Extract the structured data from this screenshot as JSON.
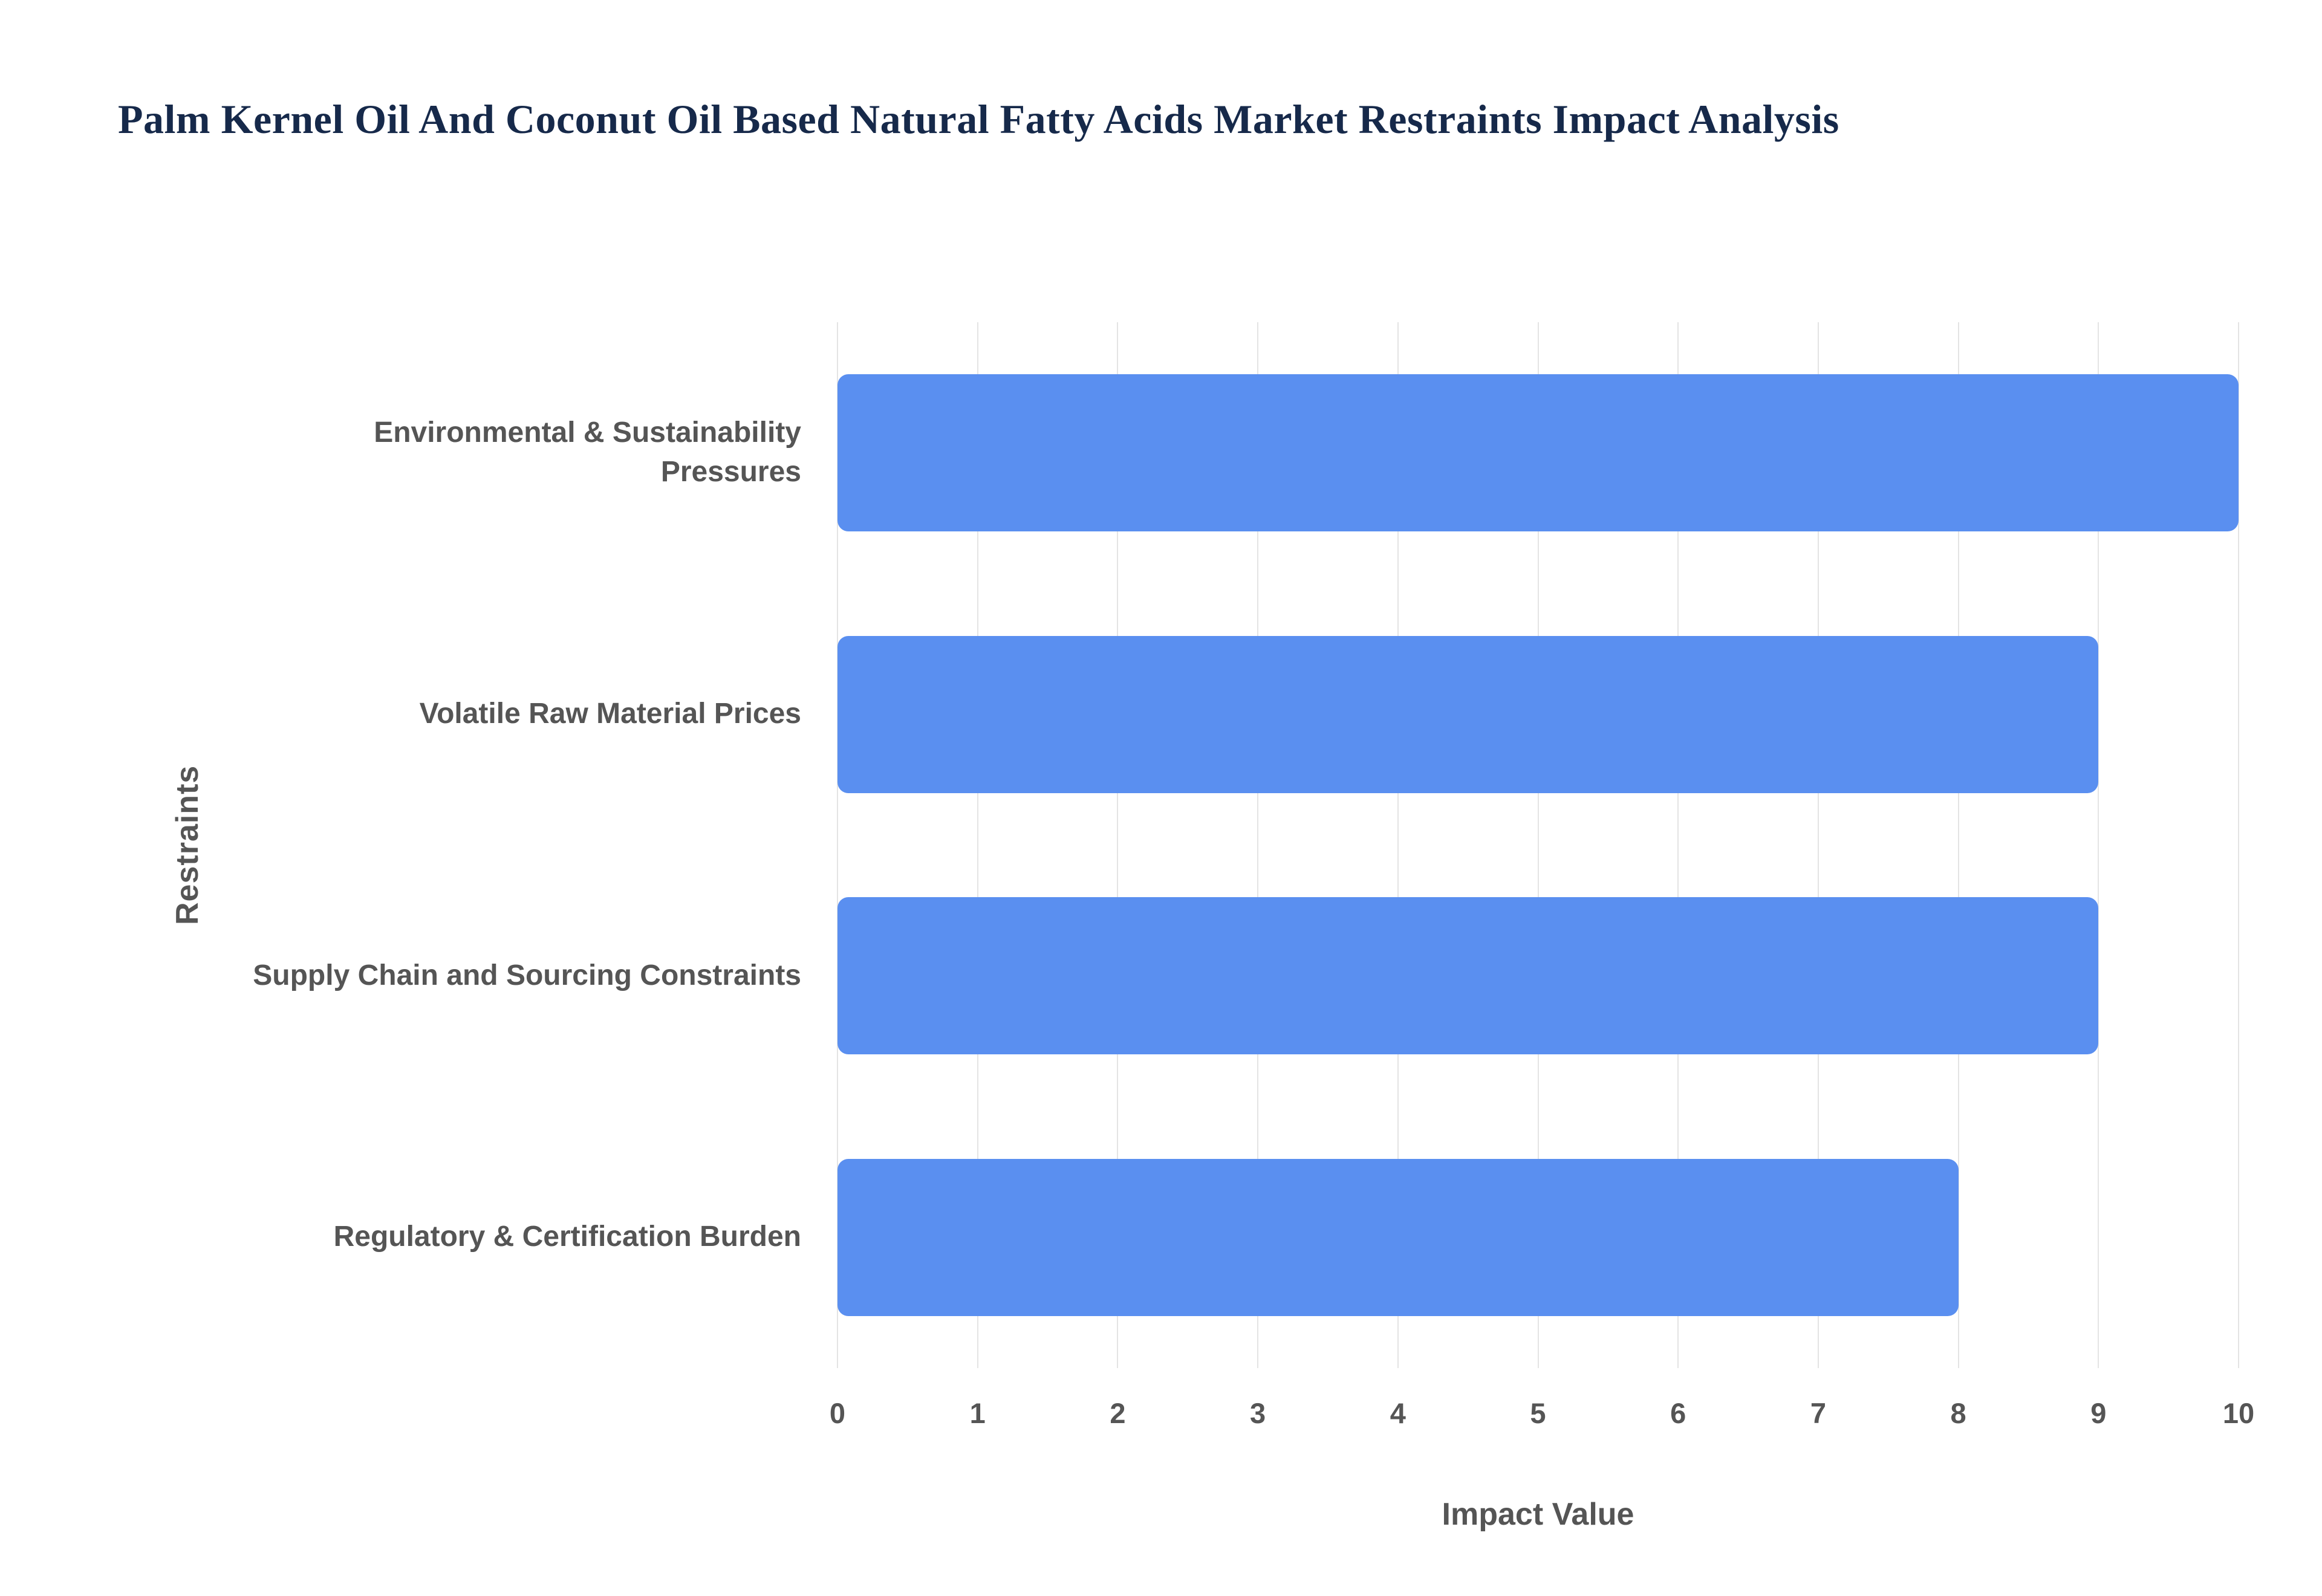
{
  "title": "Palm Kernel Oil And Coconut Oil Based Natural Fatty Acids Market Restraints Impact Analysis",
  "chart_data": {
    "type": "bar",
    "orientation": "horizontal",
    "title": "Palm Kernel Oil And Coconut Oil Based Natural Fatty Acids Market Restraints Impact Analysis",
    "categories": [
      "Environmental & Sustainability Pressures",
      "Volatile Raw Material Prices",
      "Supply Chain and Sourcing Constraints",
      "Regulatory & Certification Burden"
    ],
    "values": [
      10,
      9,
      9,
      8
    ],
    "xlabel": "Impact Value",
    "ylabel": "Restraints",
    "xlim": [
      0,
      10
    ],
    "xticks": [
      0,
      1,
      2,
      3,
      4,
      5,
      6,
      7,
      8,
      9,
      10
    ],
    "grid": true,
    "legend": "none",
    "bar_color": "#5a8ff0",
    "grid_color": "#e4e4e4",
    "axis_label_color": "#555555",
    "title_color": "#16294a",
    "background_color": "#ffffff"
  }
}
